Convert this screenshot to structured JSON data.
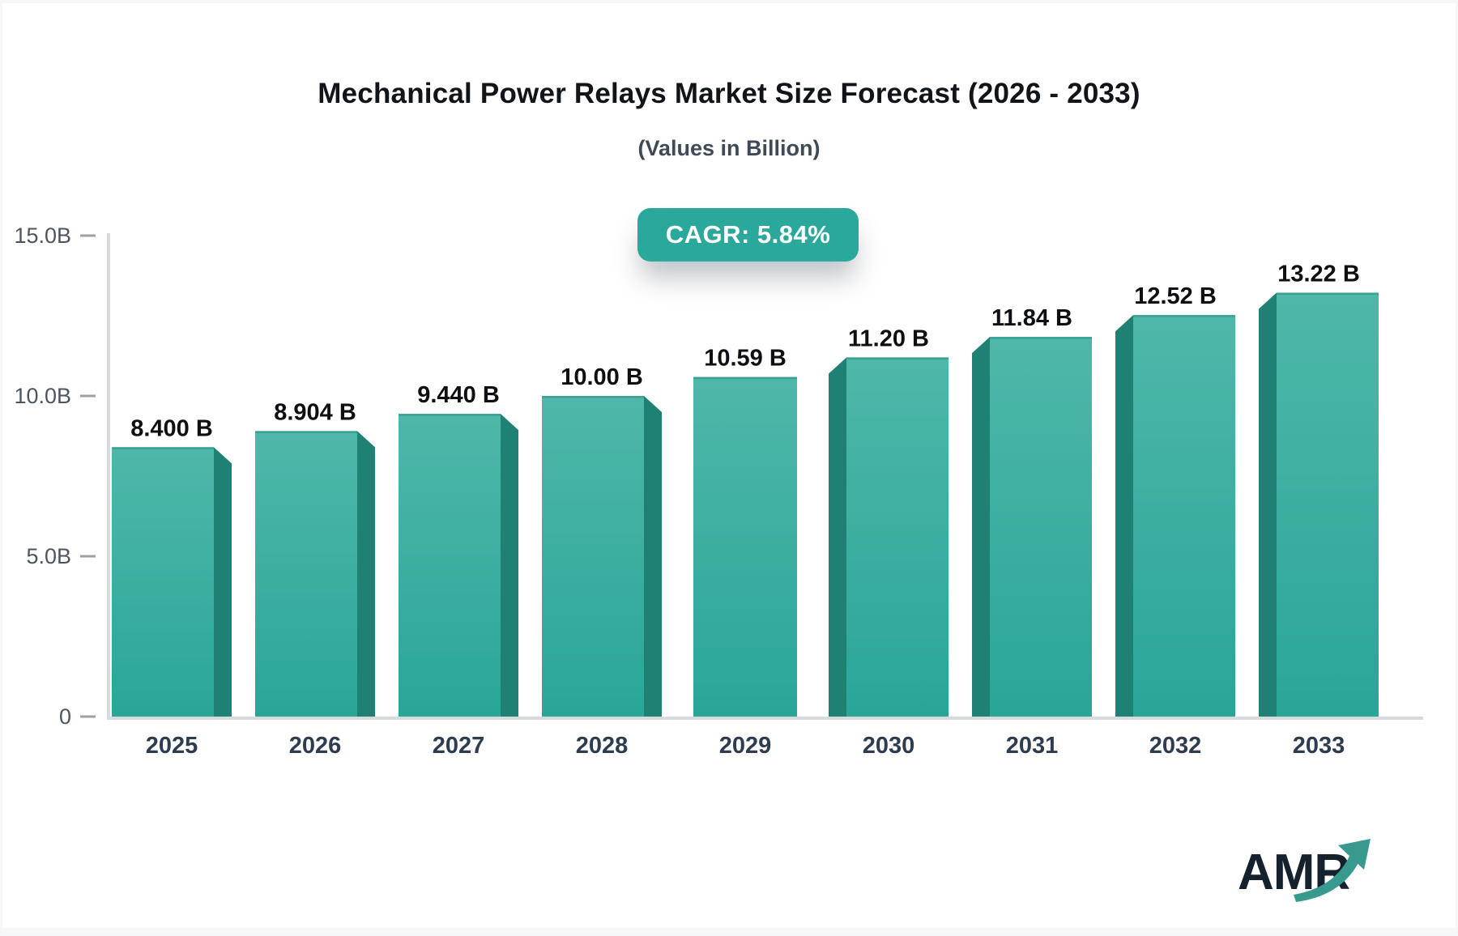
{
  "header": {
    "title": "Mechanical Power Relays Market Size Forecast (2026 - 2033)",
    "subtitle": "(Values in Billion)"
  },
  "badge": {
    "label": "CAGR: 5.84%",
    "bg": "#2aa89b"
  },
  "logo": {
    "text": "AMR",
    "arrow_color": "#38998f",
    "text_color": "#15212c"
  },
  "chart_data": {
    "type": "bar",
    "title": "Mechanical Power Relays Market Size Forecast (2026 - 2033)",
    "subtitle": "(Values in Billion)",
    "categories": [
      "2025",
      "2026",
      "2027",
      "2028",
      "2029",
      "2030",
      "2031",
      "2032",
      "2033"
    ],
    "values": [
      8.4,
      8.904,
      9.44,
      10.0,
      10.59,
      11.2,
      11.84,
      12.52,
      13.22
    ],
    "value_labels": [
      "8.400 B",
      "8.904 B",
      "9.440 B",
      "10.00 B",
      "10.59 B",
      "11.20 B",
      "11.84 B",
      "12.52 B",
      "13.22 B"
    ],
    "xlabel": "",
    "ylabel": "",
    "ylim": [
      0,
      15
    ],
    "yticks": [
      {
        "v": 0,
        "label": "0"
      },
      {
        "v": 5,
        "label": "5.0B"
      },
      {
        "v": 10,
        "label": "10.0B"
      },
      {
        "v": 15,
        "label": "15.0B"
      }
    ],
    "grid": false,
    "legend": "none",
    "colors": {
      "bar_face_top": "#4fb7aa",
      "bar_face_bottom": "#29a698",
      "bar_side": "#1f8174",
      "bar_top_edge": "#3ba094",
      "axis": "#d8dbde",
      "tick": "#9aa1a9",
      "tick_label": "#4d5560",
      "year_label": "#2e3c4f",
      "value_label": "#0d0f12"
    }
  }
}
